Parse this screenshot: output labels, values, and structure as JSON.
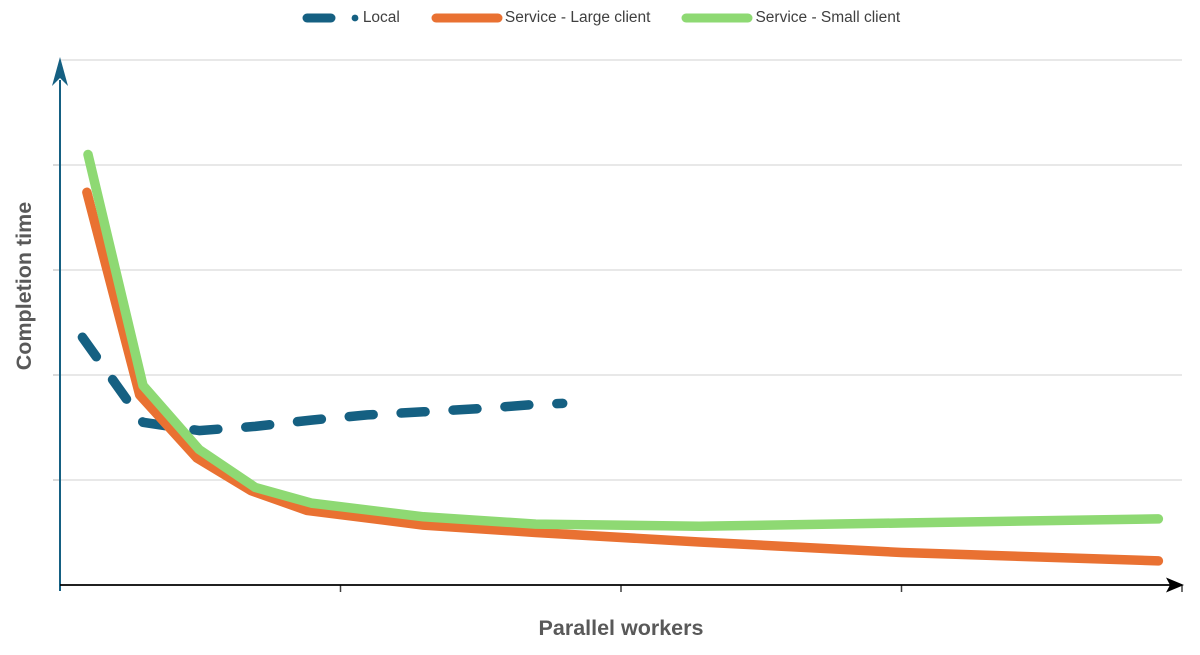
{
  "chart_data": {
    "type": "line",
    "title": "",
    "xlabel": "Parallel workers",
    "ylabel": "Completion time",
    "x_axis": {
      "label": "Parallel workers",
      "tick_count": 4,
      "tick_labels": [],
      "numeric_labels_visible": false,
      "arrow": true
    },
    "y_axis": {
      "label": "Completion time",
      "gridline_count": 5,
      "tick_labels": [],
      "numeric_labels_visible": false,
      "arrow": true
    },
    "coordinates": "x = fraction of x-axis length (0-1); y = height in gridline intervals above the x-axis (gridlines at 1,2,3,4,5); no numeric axis labels are shown in the chart",
    "grid": "horizontal gridlines only",
    "legend_position": "top-center",
    "series": [
      {
        "name": "Local",
        "color": "#156082",
        "line_style": "dashed",
        "points": [
          [
            0.02,
            2.36
          ],
          [
            0.074,
            1.55
          ],
          [
            0.124,
            1.47
          ],
          [
            0.174,
            1.51
          ],
          [
            0.224,
            1.57
          ],
          [
            0.274,
            1.62
          ],
          [
            0.324,
            1.65
          ],
          [
            0.374,
            1.68
          ],
          [
            0.424,
            1.72
          ],
          [
            0.448,
            1.73
          ]
        ]
      },
      {
        "name": "Service - Large client",
        "color": "#E97132",
        "line_style": "solid",
        "points": [
          [
            0.024,
            3.74
          ],
          [
            0.071,
            1.81
          ],
          [
            0.122,
            1.21
          ],
          [
            0.17,
            0.9
          ],
          [
            0.22,
            0.71
          ],
          [
            0.324,
            0.57
          ],
          [
            0.424,
            0.5
          ],
          [
            0.57,
            0.41
          ],
          [
            0.75,
            0.31
          ],
          [
            0.979,
            0.23
          ]
        ]
      },
      {
        "name": "Service - Small client",
        "color": "#8ED973",
        "line_style": "solid",
        "points": [
          [
            0.025,
            4.1
          ],
          [
            0.074,
            1.9
          ],
          [
            0.124,
            1.29
          ],
          [
            0.174,
            0.93
          ],
          [
            0.224,
            0.78
          ],
          [
            0.324,
            0.65
          ],
          [
            0.424,
            0.58
          ],
          [
            0.57,
            0.56
          ],
          [
            0.75,
            0.59
          ],
          [
            0.979,
            0.63
          ]
        ]
      }
    ],
    "colors": {
      "gridline": "#D9D9D9",
      "y_axis_line": "#156082",
      "x_axis_line": "#000000",
      "x_tick": "#404040",
      "y_tick": "#C6C6C6",
      "axis_title_text": "#595959",
      "legend_text": "#404040",
      "background": "#FFFFFF"
    }
  }
}
